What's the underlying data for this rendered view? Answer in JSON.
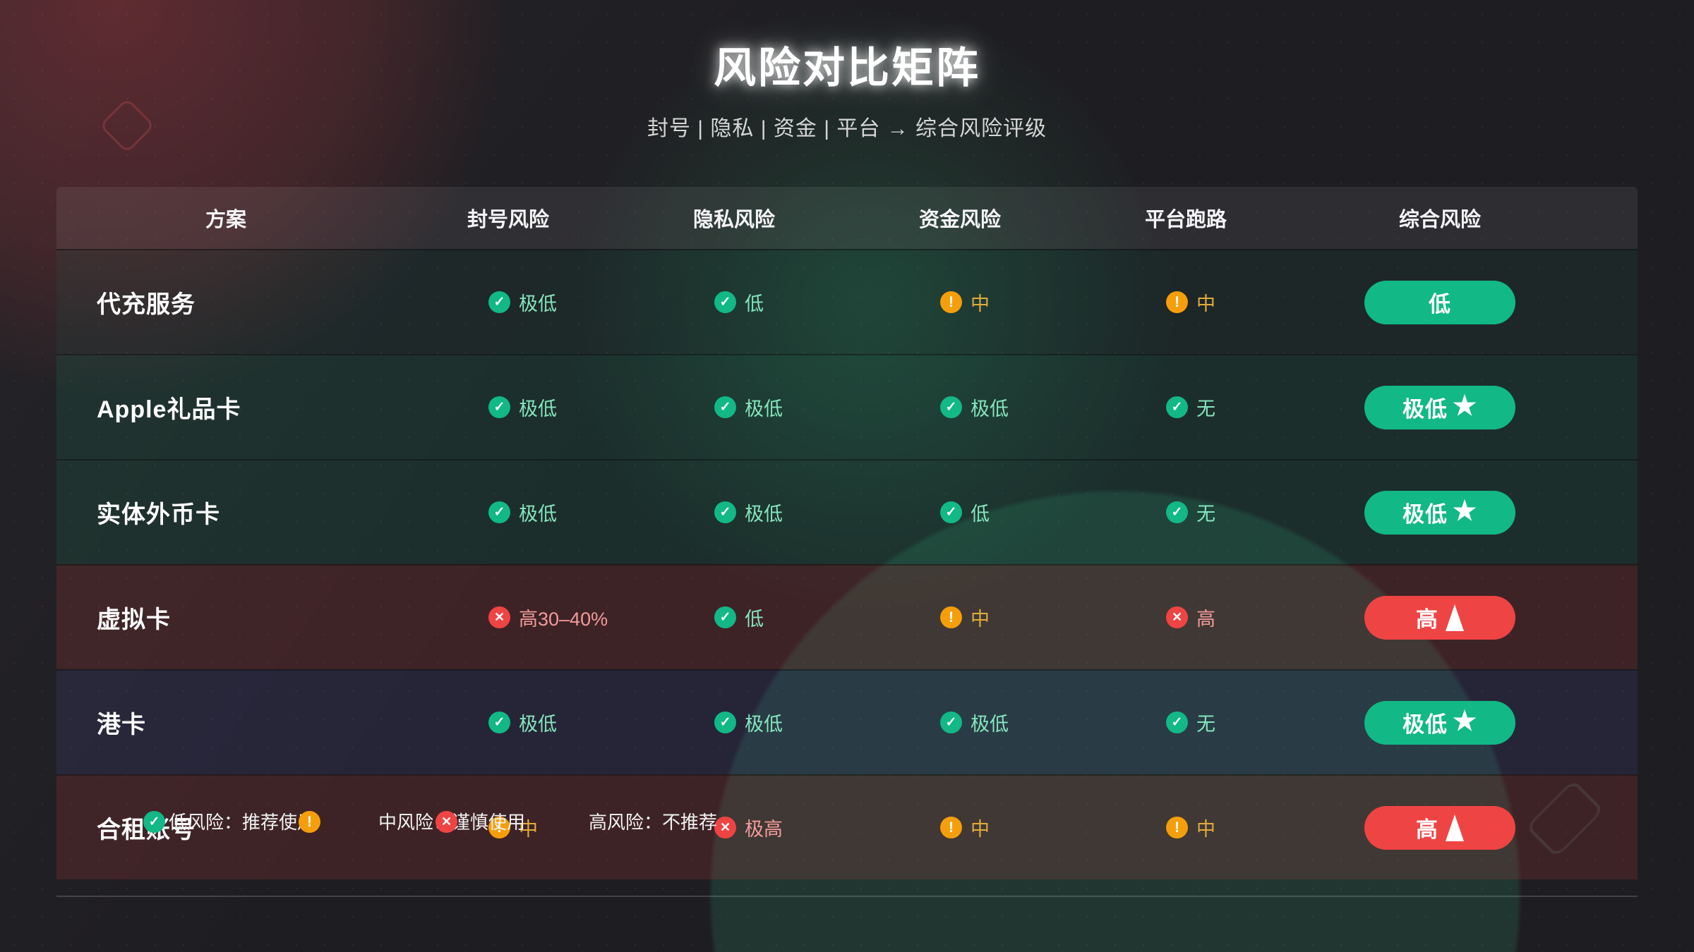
{
  "page": {
    "title": "风险对比矩阵",
    "subtitle": "封号 | 隐私 | 资金 | 平台 → 综合风险评级"
  },
  "table": {
    "columns": [
      "方案",
      "封号风险",
      "隐私风险",
      "资金风险",
      "平台跑路",
      "综合风险"
    ],
    "rows": [
      {
        "plan": "代充服务",
        "tint": "green-soft",
        "cells": [
          {
            "icon": "check",
            "text": "极低"
          },
          {
            "icon": "check",
            "text": "低"
          },
          {
            "icon": "warn",
            "text": "中"
          },
          {
            "icon": "warn",
            "text": "中"
          }
        ],
        "overall": {
          "text": "低",
          "style": "green",
          "suffix": "none"
        }
      },
      {
        "plan": "Apple礼品卡",
        "tint": "green",
        "cells": [
          {
            "icon": "check",
            "text": "极低"
          },
          {
            "icon": "check",
            "text": "极低"
          },
          {
            "icon": "check",
            "text": "极低"
          },
          {
            "icon": "check",
            "text": "无"
          }
        ],
        "overall": {
          "text": "极低",
          "style": "green",
          "suffix": "star"
        }
      },
      {
        "plan": "实体外币卡",
        "tint": "green",
        "cells": [
          {
            "icon": "check",
            "text": "极低"
          },
          {
            "icon": "check",
            "text": "极低"
          },
          {
            "icon": "check",
            "text": "低"
          },
          {
            "icon": "check",
            "text": "无"
          }
        ],
        "overall": {
          "text": "极低",
          "style": "green",
          "suffix": "star"
        }
      },
      {
        "plan": "虚拟卡",
        "tint": "red",
        "cells": [
          {
            "icon": "x",
            "text": "高30–40%"
          },
          {
            "icon": "check",
            "text": "低"
          },
          {
            "icon": "warn",
            "text": "中"
          },
          {
            "icon": "x",
            "text": "高"
          }
        ],
        "overall": {
          "text": "高",
          "style": "red",
          "suffix": "triangle"
        }
      },
      {
        "plan": "港卡",
        "tint": "indigo",
        "cells": [
          {
            "icon": "check",
            "text": "极低"
          },
          {
            "icon": "check",
            "text": "极低"
          },
          {
            "icon": "check",
            "text": "极低"
          },
          {
            "icon": "check",
            "text": "无"
          }
        ],
        "overall": {
          "text": "极低",
          "style": "green",
          "suffix": "star"
        }
      },
      {
        "plan": "合租账号",
        "tint": "red",
        "cells": [
          {
            "icon": "warn",
            "text": "中"
          },
          {
            "icon": "x",
            "text": "极高"
          },
          {
            "icon": "warn",
            "text": "中"
          },
          {
            "icon": "warn",
            "text": "中"
          }
        ],
        "overall": {
          "text": "高",
          "style": "red",
          "suffix": "triangle"
        }
      }
    ]
  },
  "legend": {
    "items": [
      {
        "icon": "check",
        "label": "低风险：推荐使用"
      },
      {
        "icon": "warn",
        "label": "中风险：谨慎使用"
      },
      {
        "icon": "x",
        "label": "高风险：不推荐"
      }
    ]
  },
  "colors": {
    "safe_green": "#12b886",
    "warn_orange": "#f59e0b",
    "danger_red": "#ef4444"
  }
}
